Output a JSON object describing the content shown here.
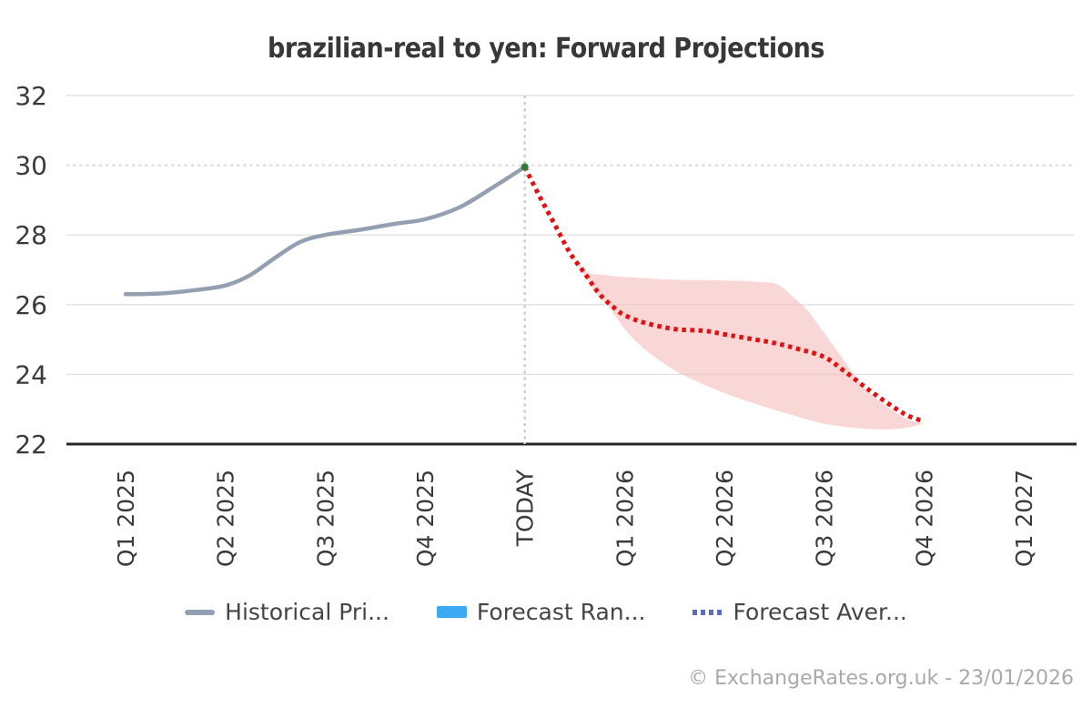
{
  "page": {
    "title_label": "brazilian-real to yen: Forward Projections",
    "watermark": "© ExchangeRates.org.uk - 23/01/2026"
  },
  "legend": {
    "items": [
      {
        "label": "Historical Pri...",
        "color": "#94A0B2",
        "swatch": "line"
      },
      {
        "label": "Forecast Ran...",
        "color": "#3DA8F4",
        "swatch": "rect"
      },
      {
        "label": "Forecast Aver...",
        "color": "#5C6BC0",
        "swatch": "dots"
      }
    ]
  },
  "colors": {
    "historical_line": "#94A0B2",
    "forecast_average_line": "#E01111",
    "forecast_range_band": "#F5BDBD",
    "today_marker": "#2E7D32",
    "gridline": "#E4E4E4",
    "dotted_guide": "#D8D8D8",
    "today_vline": "#CCCCCC",
    "axis_line": "#262626"
  },
  "chart_data": {
    "type": "line",
    "title": "brazilian-real to yen: Forward Projections",
    "categories": [
      "Q1 2025",
      "Q2 2025",
      "Q3 2025",
      "Q4 2025",
      "TODAY",
      "Q1 2026",
      "Q2 2026",
      "Q3 2026",
      "Q4 2026",
      "Q1 2027"
    ],
    "ylim": [
      22,
      32
    ],
    "yticks": [
      22,
      24,
      26,
      28,
      30,
      32
    ],
    "grid": true,
    "legend_position": "bottom",
    "today_index": 4,
    "today_value": 30,
    "today_marker": {
      "index": 4,
      "value": 29.95,
      "color": "#2E7D32"
    },
    "quarterly_summary": {
      "historical": {
        "Q1 2025": 26.3,
        "Q2 2025": 26.55,
        "Q3 2025": 28.0,
        "Q4 2025": 28.45,
        "TODAY": 30.0
      },
      "forecast_average": {
        "Q1 2026": 25.7,
        "Q2 2026": 25.15,
        "Q3 2026": 24.5,
        "Q4 2026": 22.65
      }
    },
    "series": [
      {
        "name": "Historical Price",
        "style": "solid",
        "color": "#94A0B2",
        "points": [
          [
            0,
            26.3
          ],
          [
            0.35,
            26.32
          ],
          [
            0.7,
            26.42
          ],
          [
            1,
            26.55
          ],
          [
            1.25,
            26.85
          ],
          [
            1.5,
            27.35
          ],
          [
            1.75,
            27.8
          ],
          [
            2,
            28.0
          ],
          [
            2.35,
            28.15
          ],
          [
            2.7,
            28.32
          ],
          [
            3,
            28.45
          ],
          [
            3.35,
            28.8
          ],
          [
            3.7,
            29.4
          ],
          [
            4,
            29.95
          ]
        ]
      },
      {
        "name": "Forecast Average",
        "style": "dotted",
        "color": "#E01111",
        "points": [
          [
            4,
            29.95
          ],
          [
            4.15,
            29.1
          ],
          [
            4.3,
            28.3
          ],
          [
            4.45,
            27.5
          ],
          [
            4.6,
            26.9
          ],
          [
            4.75,
            26.3
          ],
          [
            4.9,
            25.9
          ],
          [
            5,
            25.7
          ],
          [
            5.2,
            25.48
          ],
          [
            5.5,
            25.3
          ],
          [
            5.8,
            25.25
          ],
          [
            6,
            25.15
          ],
          [
            6.2,
            25.05
          ],
          [
            6.5,
            24.9
          ],
          [
            6.75,
            24.72
          ],
          [
            7,
            24.5
          ],
          [
            7.2,
            24.1
          ],
          [
            7.45,
            23.55
          ],
          [
            7.7,
            23.05
          ],
          [
            7.85,
            22.8
          ],
          [
            8,
            22.65
          ]
        ]
      },
      {
        "name": "Forecast Range",
        "style": "band",
        "color": "#F5BDBD",
        "upper": [
          [
            4.45,
            27.5
          ],
          [
            4.62,
            26.95
          ],
          [
            4.8,
            26.85
          ],
          [
            5.0,
            26.8
          ],
          [
            5.46,
            26.72
          ],
          [
            5.92,
            26.7
          ],
          [
            6.37,
            26.65
          ],
          [
            6.54,
            26.57
          ],
          [
            6.67,
            26.27
          ],
          [
            6.83,
            25.84
          ],
          [
            6.97,
            25.3
          ],
          [
            7.13,
            24.68
          ],
          [
            7.28,
            24.07
          ],
          [
            7.43,
            23.54
          ],
          [
            7.58,
            23.18
          ],
          [
            7.74,
            22.87
          ],
          [
            7.89,
            22.65
          ],
          [
            8,
            22.6
          ]
        ],
        "lower": [
          [
            4.45,
            27.5
          ],
          [
            4.69,
            26.43
          ],
          [
            4.85,
            25.9
          ],
          [
            5.0,
            25.3
          ],
          [
            5.15,
            24.85
          ],
          [
            5.3,
            24.5
          ],
          [
            5.51,
            24.1
          ],
          [
            5.76,
            23.75
          ],
          [
            6.06,
            23.4
          ],
          [
            6.37,
            23.1
          ],
          [
            6.67,
            22.84
          ],
          [
            6.97,
            22.6
          ],
          [
            7.28,
            22.47
          ],
          [
            7.58,
            22.42
          ],
          [
            7.83,
            22.47
          ],
          [
            8,
            22.6
          ]
        ]
      }
    ]
  }
}
